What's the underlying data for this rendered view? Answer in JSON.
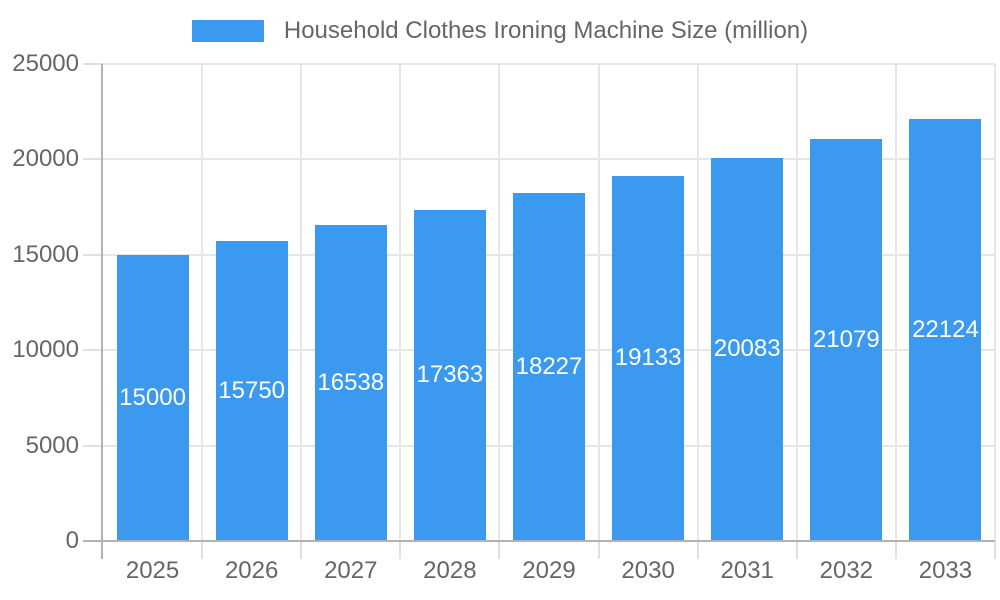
{
  "chart_data": {
    "type": "bar",
    "title": "Household Clothes Ironing Machine Size (million)",
    "legend": {
      "label": "Household Clothes Ironing Machine Size (million)",
      "position": "top"
    },
    "categories": [
      "2025",
      "2026",
      "2027",
      "2028",
      "2029",
      "2030",
      "2031",
      "2032",
      "2033"
    ],
    "values": [
      15000,
      15750,
      16538,
      17363,
      18227,
      19133,
      20083,
      21079,
      22124
    ],
    "value_labels": [
      "15000",
      "15750",
      "16538",
      "17363",
      "18227",
      "19133",
      "20083",
      "21079",
      "22124"
    ],
    "value_label_position": "inside-center",
    "xlabel": "",
    "ylabel": "",
    "ylim": [
      0,
      25000
    ],
    "yticks": [
      "0",
      "5000",
      "10000",
      "15000",
      "20000",
      "25000"
    ],
    "grid": true,
    "colors": {
      "bar": "#3b99f0",
      "value_label_text": "#ffffff",
      "axis_text": "#666666",
      "legend_text": "#666666",
      "gridline": "#e6e6e6",
      "tick": "#e0e0e0",
      "axis_line": "#b3b3b3",
      "background": "#ffffff"
    }
  }
}
